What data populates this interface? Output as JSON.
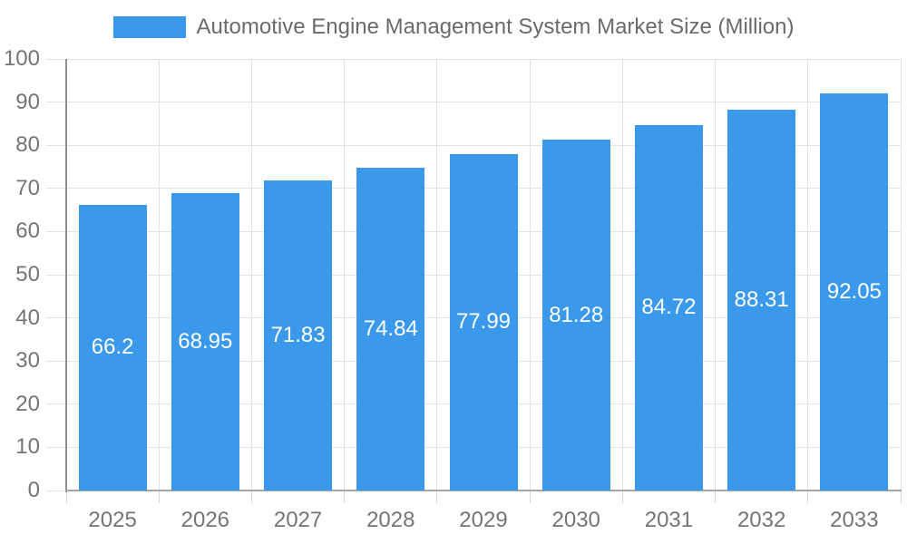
{
  "chart_data": {
    "type": "bar",
    "title": "Automotive Engine Management System Market Size (Million)",
    "categories": [
      "2025",
      "2026",
      "2027",
      "2028",
      "2029",
      "2030",
      "2031",
      "2032",
      "2033"
    ],
    "values": [
      66.2,
      68.95,
      71.83,
      74.84,
      77.99,
      81.28,
      84.72,
      88.31,
      92.05
    ],
    "value_labels": [
      "66.2",
      "68.95",
      "71.83",
      "74.84",
      "77.99",
      "81.28",
      "84.72",
      "88.31",
      "92.05"
    ],
    "xlabel": "",
    "ylabel": "",
    "ylim": [
      0,
      100
    ],
    "yticks": [
      0,
      10,
      20,
      30,
      40,
      50,
      60,
      70,
      80,
      90,
      100
    ],
    "grid": true,
    "legend_position": "top",
    "colors": {
      "bar": "#3B99EC",
      "grid": "#e3e3e3",
      "y_axis_line": "#8f8f8f",
      "x_axis_line": "#a6a6a6",
      "axis_text": "#757575",
      "legend_text": "#6b6b6b",
      "value_text": "#ffffff",
      "background": "#ffffff"
    }
  }
}
